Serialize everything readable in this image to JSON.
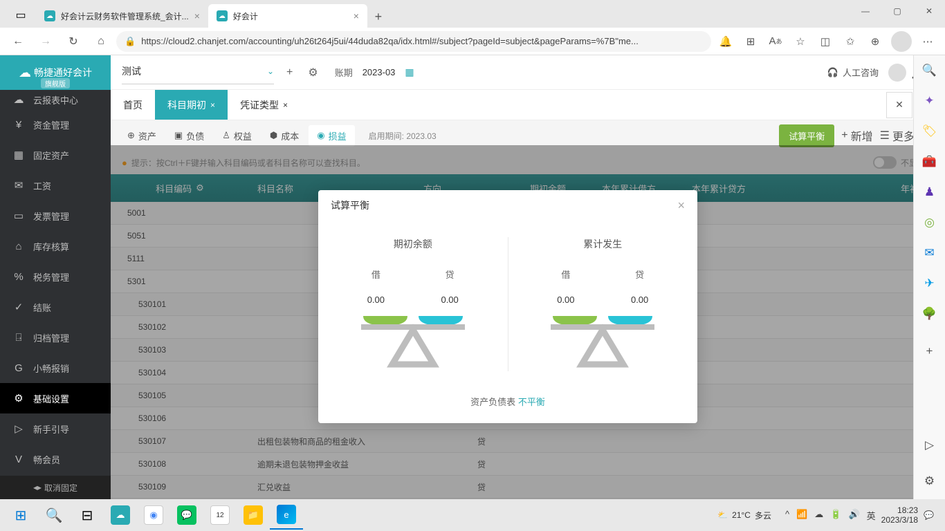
{
  "browser": {
    "tabs": [
      {
        "title": "好会计云财务软件管理系统_会计...",
        "active": false
      },
      {
        "title": "好会计",
        "active": true
      }
    ],
    "url": "https://cloud2.chanjet.com/accounting/uh26t264j5ui/44duda82qa/idx.html#/subject?pageId=subject&pageParams=%7B\"me..."
  },
  "app": {
    "brand": "畅捷通好会计",
    "edition": "旗舰版",
    "company": "测试",
    "period_label": "账期",
    "period_value": "2023-03",
    "consult": "人工咨询",
    "username": "用友"
  },
  "sidebar": {
    "items": [
      {
        "label": "云报表中心",
        "icon": "☁"
      },
      {
        "label": "资金管理",
        "icon": "¥"
      },
      {
        "label": "固定资产",
        "icon": "▦"
      },
      {
        "label": "工资",
        "icon": "✉"
      },
      {
        "label": "发票管理",
        "icon": "▭"
      },
      {
        "label": "库存核算",
        "icon": "⌂"
      },
      {
        "label": "税务管理",
        "icon": "%"
      },
      {
        "label": "结账",
        "icon": "✓"
      },
      {
        "label": "归档管理",
        "icon": "⍈"
      },
      {
        "label": "小畅报销",
        "icon": "G"
      },
      {
        "label": "基础设置",
        "icon": "⚙",
        "active": true
      },
      {
        "label": "新手引导",
        "icon": "▷"
      },
      {
        "label": "畅会员",
        "icon": "V"
      }
    ],
    "footer": "取消固定"
  },
  "page_tabs": [
    {
      "label": "首页",
      "closable": false
    },
    {
      "label": "科目期初",
      "closable": true,
      "active": true
    },
    {
      "label": "凭证类型",
      "closable": true
    }
  ],
  "category_tabs": [
    {
      "label": "资产",
      "icon": "⊕"
    },
    {
      "label": "负债",
      "icon": "▣"
    },
    {
      "label": "权益",
      "icon": "♙"
    },
    {
      "label": "成本",
      "icon": "⬢"
    },
    {
      "label": "损益",
      "icon": "◉",
      "selected": true
    }
  ],
  "enable_period_label": "启用期间:",
  "enable_period": "2023.03",
  "toolbar_buttons": {
    "trial": "试算平衡",
    "add": "新增",
    "more": "更多操作"
  },
  "hint": "提示：按Ctrl＋F键并输入科目编码或者科目名称可以查找科目。",
  "toggle_label": "不显示其",
  "table": {
    "headers": {
      "code": "科目编码",
      "name": "科目名称",
      "dir": "方向",
      "init": "期初余额",
      "debit": "本年累计借方",
      "credit": "本年累计贷方",
      "year_init": "年初余额"
    },
    "rows": [
      {
        "code": "5001"
      },
      {
        "code": "5051"
      },
      {
        "code": "5111"
      },
      {
        "code": "5301"
      },
      {
        "code": "530101",
        "indent": true
      },
      {
        "code": "530102",
        "indent": true
      },
      {
        "code": "530103",
        "indent": true
      },
      {
        "code": "530104",
        "indent": true
      },
      {
        "code": "530105",
        "indent": true
      },
      {
        "code": "530106",
        "indent": true
      },
      {
        "code": "530107",
        "indent": true,
        "name": "出租包装物和商品的租金收入",
        "dir": "贷"
      },
      {
        "code": "530108",
        "indent": true,
        "name": "逾期未退包装物押金收益",
        "dir": "贷"
      },
      {
        "code": "530109",
        "indent": true,
        "name": "汇兑收益",
        "dir": "贷"
      }
    ]
  },
  "modal": {
    "title": "试算平衡",
    "col1_title": "期初余额",
    "col2_title": "累计发生",
    "debit_label": "借",
    "credit_label": "贷",
    "debit_val": "0.00",
    "credit_val": "0.00",
    "footer_prefix": "资产负债表",
    "footer_status": "不平衡",
    "colors": {
      "green_cup": "#8bc34a",
      "blue_cup": "#29c3d6",
      "base": "#bdbdbd"
    }
  },
  "taskbar": {
    "weather_temp": "21°C",
    "weather_desc": "多云",
    "ime": "英",
    "time": "18:23",
    "date": "2023/3/18"
  }
}
